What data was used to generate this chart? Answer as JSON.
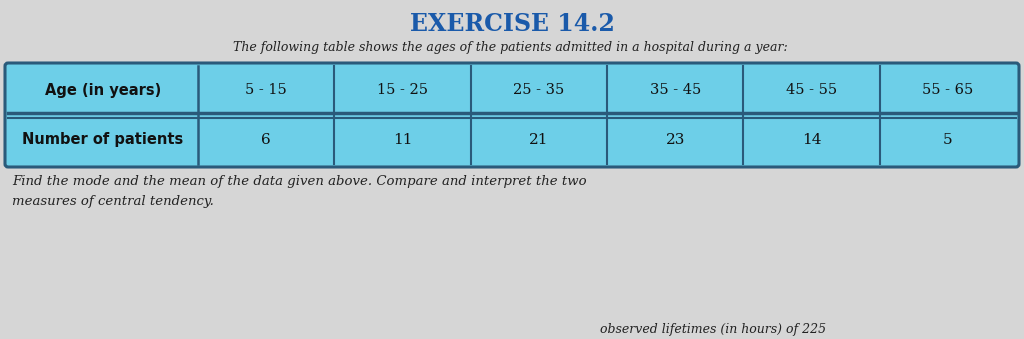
{
  "title": "EXERCISE 14.2",
  "subtitle": "The following table shows the ages of the patients admitted in a hospital during a year:",
  "col_header": "Age (in years)",
  "row_header": "Number of patients",
  "age_ranges": [
    "5 - 15",
    "15 - 25",
    "25 - 35",
    "35 - 45",
    "45 - 55",
    "55 - 65"
  ],
  "patients": [
    "6",
    "11",
    "21",
    "23",
    "14",
    "5"
  ],
  "footer_line1": "Find the mode and the mean of the data given above. Compare and interpret the two",
  "footer_line2": "measures of central tendency.",
  "footer_line3": "observed lifetimes (in hours) of 225",
  "bg_color": "#d6d6d6",
  "table_bg": "#6dcfe8",
  "border_color": "#2a5a7a",
  "title_color": "#1a5aaa",
  "text_color": "#222222",
  "header_text_color": "#111111"
}
